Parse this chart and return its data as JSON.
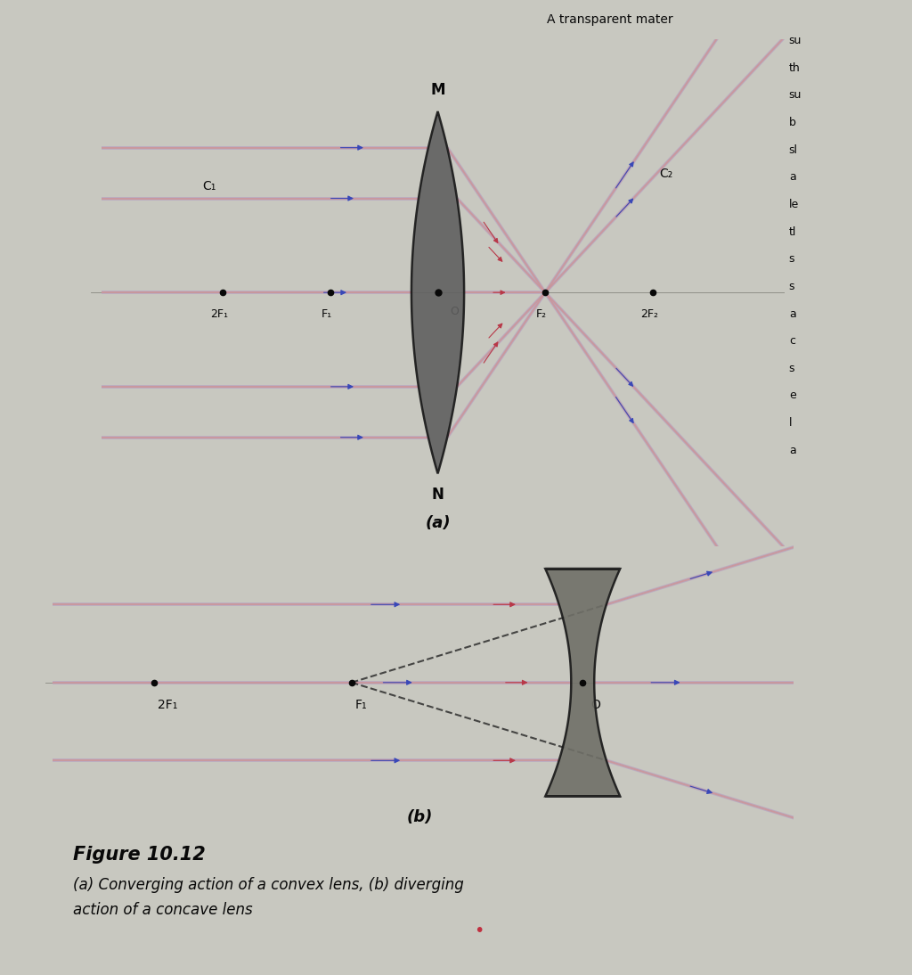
{
  "bg_color": "#c8c8c0",
  "lens_fill_a": "#606060",
  "lens_fill_b": "#707068",
  "lens_edge": "#181818",
  "ray_outer": "#b8a8c0",
  "ray_inner": "#d09090",
  "arrow_blue": "#3848b8",
  "arrow_red": "#b83848",
  "dashed_color": "#282828",
  "dot_color": "#080808",
  "text_color": "#080808",
  "margin_bg": "#b8b8b0",
  "title_a": "(a)",
  "title_b": "(b)",
  "fig_title": "Figure 10.12",
  "caption_line1": "(a) Converging action of a convex lens, (b) diverging",
  "caption_line2": "action of a concave lens",
  "margin_text1": "A transparent mater",
  "margin_lines": [
    "su",
    "th",
    "su",
    "b",
    "sl",
    "a",
    "le",
    "tl",
    "s",
    "s",
    "a",
    "c",
    "s",
    "e",
    "l",
    "a"
  ]
}
